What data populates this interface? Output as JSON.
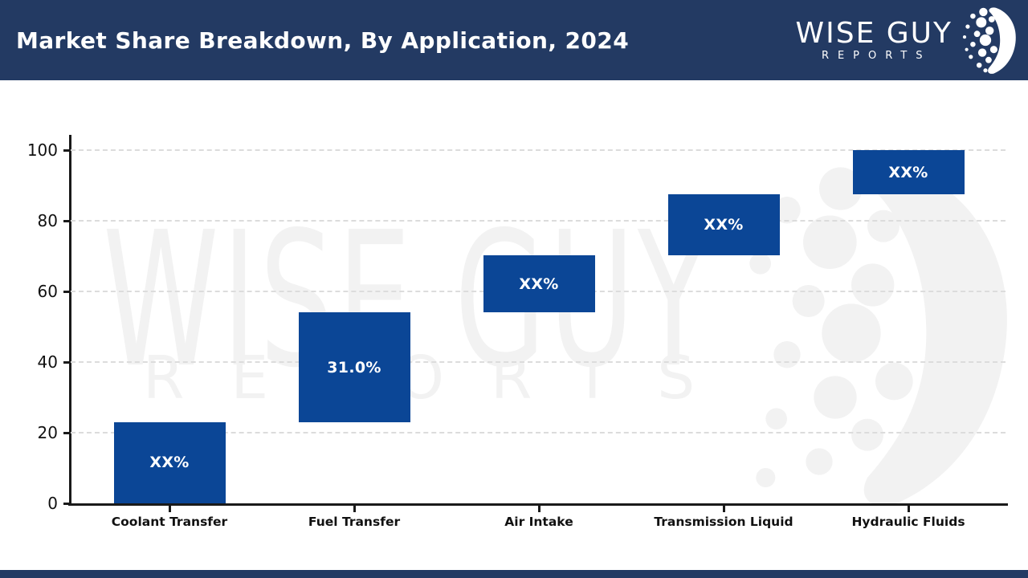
{
  "header": {
    "title": "Market Share Breakdown, By Application, 2024",
    "background_color": "#233A63",
    "text_color": "#FFFFFF",
    "logo": {
      "line1": "WISE GUY",
      "line2": "REPORTS"
    }
  },
  "watermark": {
    "line1": "WISE GUY",
    "line2": "REPORTS"
  },
  "footer": {
    "background_color": "#233A63"
  },
  "chart_data": {
    "type": "bar",
    "subtype": "floating-waterfall",
    "title": "Market Share Breakdown, By Application, 2024",
    "xlabel": "",
    "ylabel": "",
    "categories": [
      "Coolant Transfer",
      "Fuel Transfer",
      "Air Intake",
      "Transmission Liquid",
      "Hydraulic Fluids"
    ],
    "segments": [
      {
        "category": "Coolant Transfer",
        "start": 0,
        "end": 23,
        "label": "XX%"
      },
      {
        "category": "Fuel Transfer",
        "start": 23,
        "end": 54,
        "label": "31.0%"
      },
      {
        "category": "Air Intake",
        "start": 54,
        "end": 70.3,
        "label": "XX%"
      },
      {
        "category": "Transmission Liquid",
        "start": 70.3,
        "end": 87.5,
        "label": "XX%"
      },
      {
        "category": "Hydraulic Fluids",
        "start": 87.5,
        "end": 100,
        "label": "XX%"
      }
    ],
    "yticks": [
      0,
      20,
      40,
      60,
      80,
      100
    ],
    "ylim": [
      0,
      104
    ],
    "grid": "horizontal-dashed",
    "legend": "none",
    "bar_color": "#0B4696",
    "bar_label_color": "#FFFFFF",
    "axis_color": "#1A1A1A",
    "gridline_color": "#DCDCDC"
  }
}
